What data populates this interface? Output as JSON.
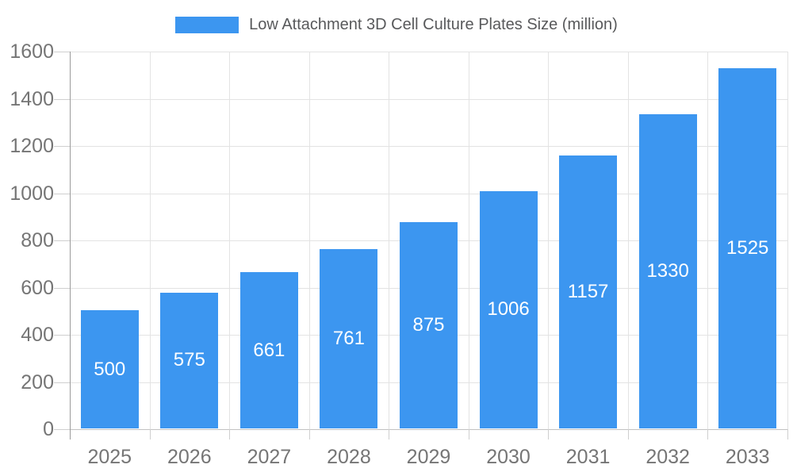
{
  "chart_data": {
    "type": "bar",
    "title": "Low Attachment 3D Cell Culture Plates Size (million)",
    "categories": [
      "2025",
      "2026",
      "2027",
      "2028",
      "2029",
      "2030",
      "2031",
      "2032",
      "2033"
    ],
    "values": [
      500,
      575,
      661,
      761,
      875,
      1006,
      1157,
      1330,
      1525
    ],
    "value_labels": [
      "500",
      "575",
      "661",
      "761",
      "875",
      "1006",
      "1157",
      "1330",
      "1525"
    ],
    "xlabel": "",
    "ylabel": "",
    "ylim": [
      0,
      1600
    ],
    "ytick_step": 200,
    "ytick_labels": [
      "0",
      "200",
      "400",
      "600",
      "800",
      "1000",
      "1200",
      "1400",
      "1600"
    ],
    "grid": true,
    "legend_position": "top",
    "bar_color": "#3C96F0",
    "value_label_color": "#FFFFFF",
    "axis_label_color": "#757575",
    "title_color": "#58595B"
  }
}
